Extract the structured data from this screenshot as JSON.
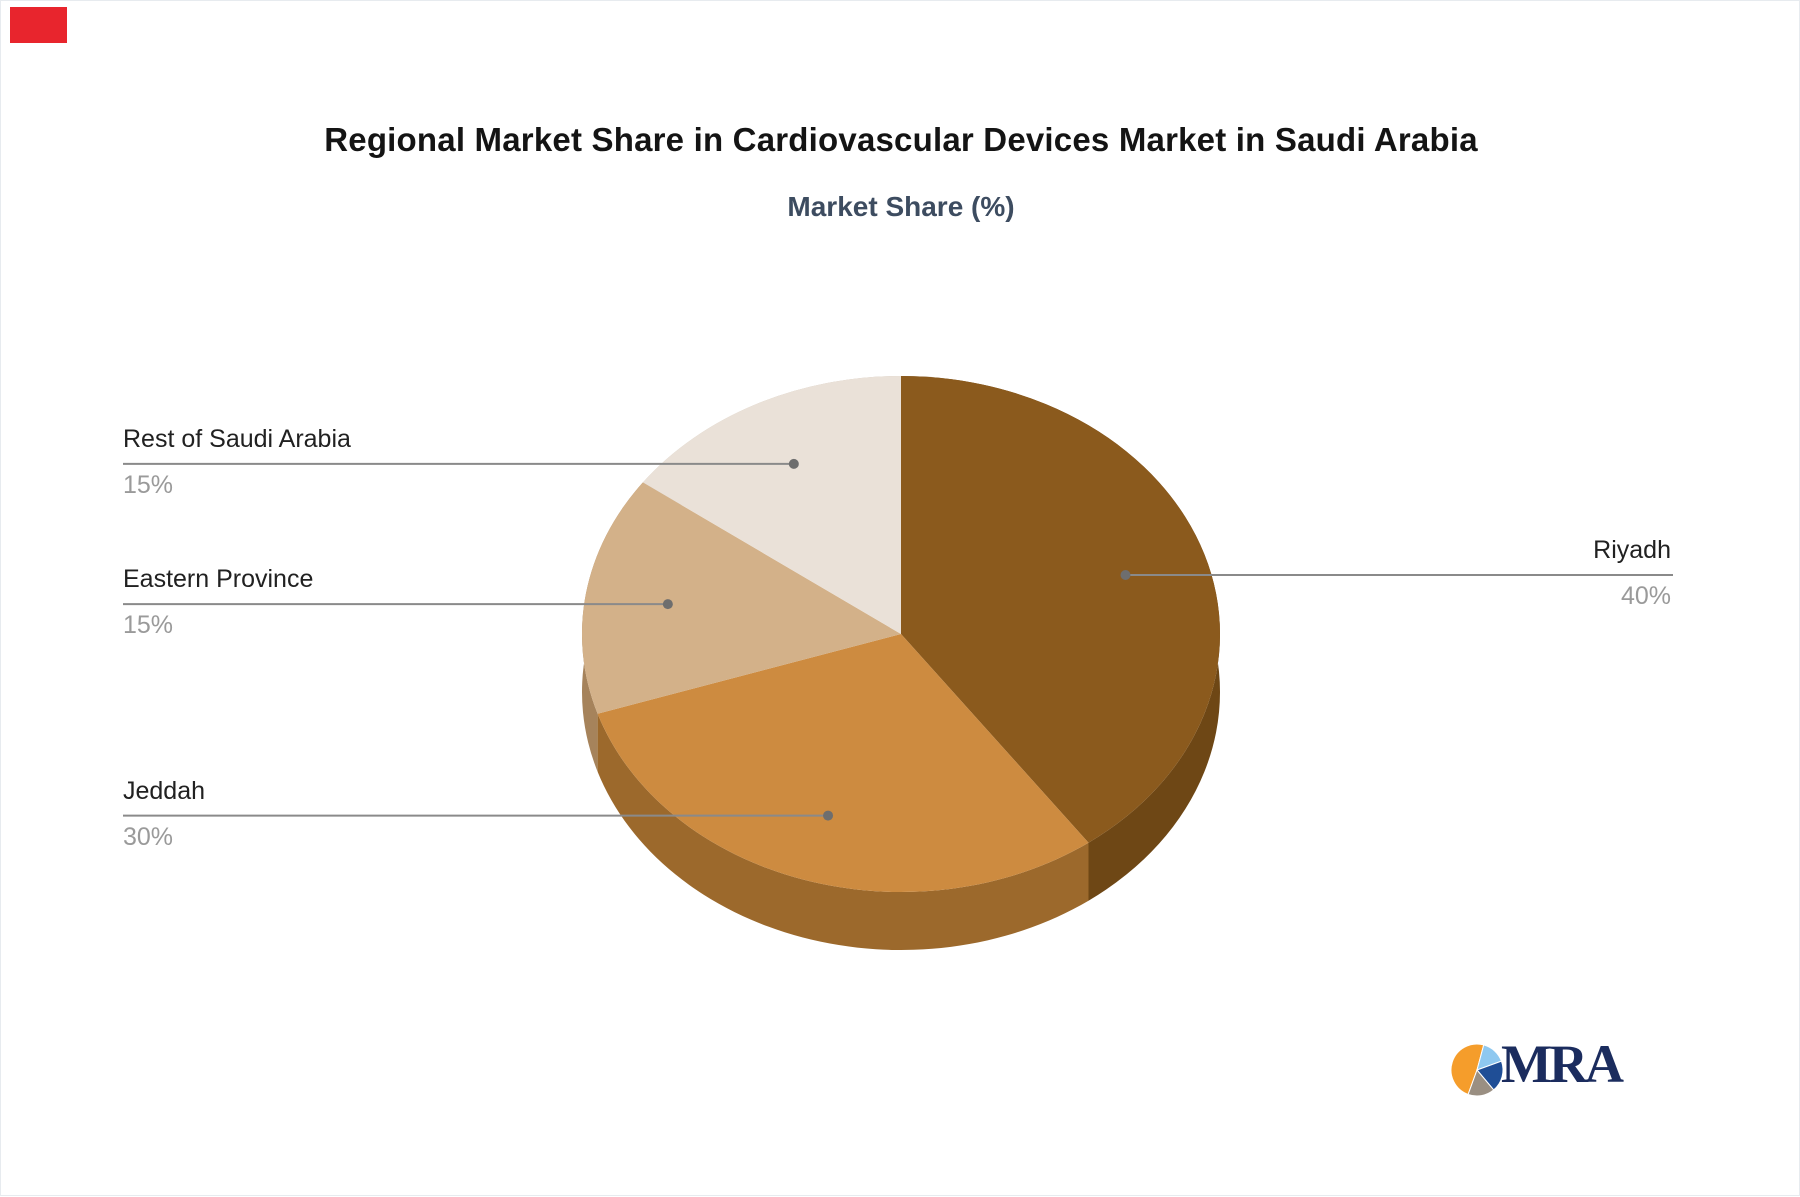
{
  "marker": {
    "color": "#e8252d"
  },
  "chart_data": {
    "type": "pie",
    "title": "Regional Market Share in Cardiovascular Devices Market in Saudi Arabia",
    "subtitle": "Market Share (%)",
    "unit": "%",
    "style": "3d",
    "direction": "clockwise",
    "start_angle_deg": 0,
    "legend_position": "callout-labels",
    "slices": [
      {
        "label": "Riyadh",
        "value": 40,
        "percent_label": "40%",
        "color": "#8B5A1D",
        "side_color": "#6E4715",
        "label_side": "right"
      },
      {
        "label": "Jeddah",
        "value": 30,
        "percent_label": "30%",
        "color": "#CD8B40",
        "side_color": "#9C692C",
        "label_side": "left"
      },
      {
        "label": "Eastern Province",
        "value": 15,
        "percent_label": "15%",
        "color": "#D3B189",
        "side_color": "#A6835B",
        "label_side": "left"
      },
      {
        "label": "Rest of Saudi Arabia",
        "value": 15,
        "percent_label": "15%",
        "color": "#EAE1D8",
        "side_color": "#C9BCAD",
        "label_side": "left"
      }
    ],
    "callout": {
      "line_color": "#8a8a8a",
      "dot_color": "#6e6e6e"
    }
  },
  "logo": {
    "text": "MRA",
    "text_color": "#1b2c5e",
    "icon_colors": {
      "orange": "#F59D2B",
      "light_blue": "#8EC8F0",
      "dark_blue": "#1F4E96",
      "gray": "#9A8F82"
    }
  }
}
